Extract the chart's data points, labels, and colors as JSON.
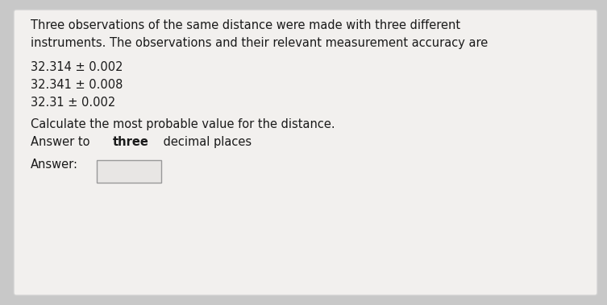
{
  "bg_color": "#c8c8c8",
  "card_color": "#f2f0ee",
  "title_lines": [
    "Three observations of the same distance were made with three different",
    "instruments. The observations and their relevant measurement accuracy are"
  ],
  "observations": [
    "32.314 ± 0.002",
    "32.341 ± 0.008",
    "32.31 ± 0.002"
  ],
  "calc_line": "Calculate the most probable value for the distance.",
  "answer_to_parts": [
    [
      "Answer to ",
      false
    ],
    [
      "three",
      true
    ],
    [
      " decimal places",
      false
    ]
  ],
  "answer_label": "Answer:",
  "text_color": "#1a1a1a",
  "font_size": 10.5,
  "box_edge_color": "#aaaaaa",
  "box_face_color": "#e8e6e4"
}
